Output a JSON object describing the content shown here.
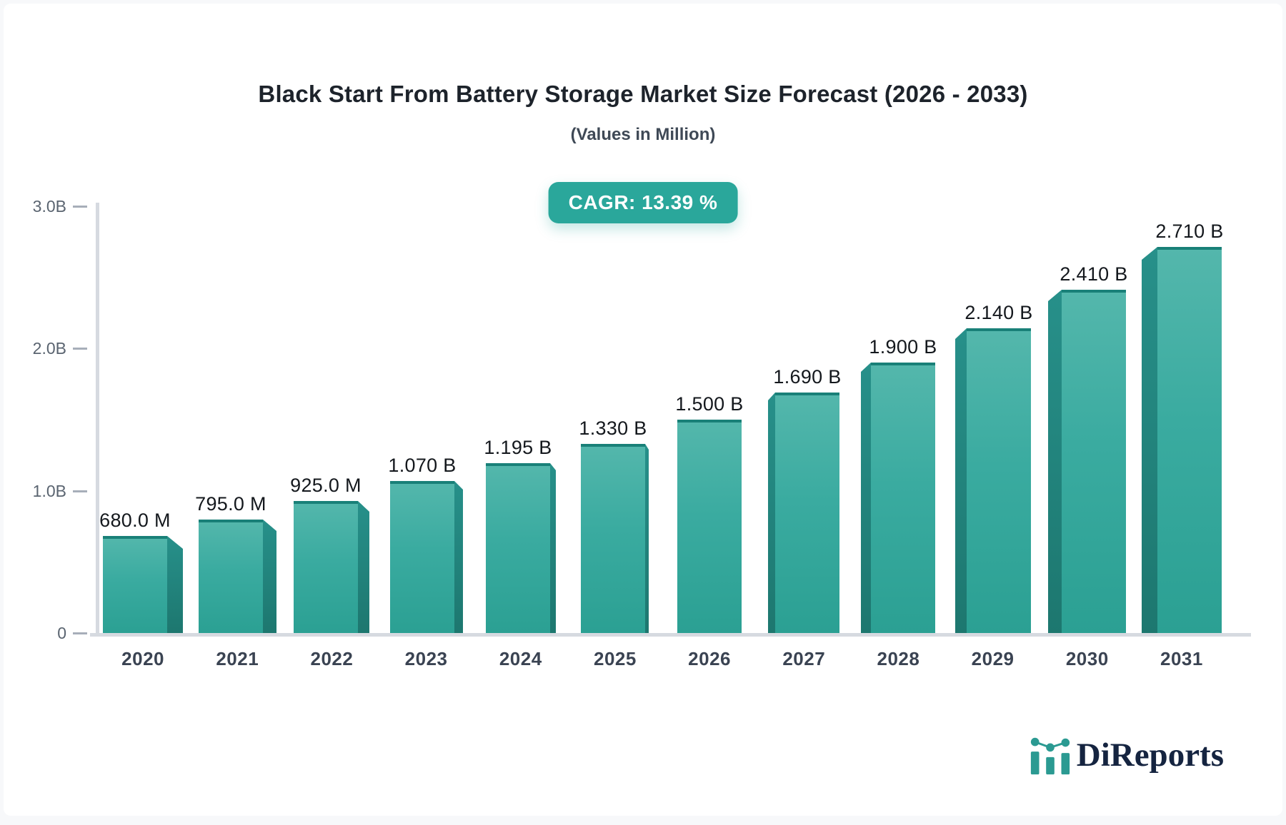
{
  "page": {
    "title": "Black Start From Battery Storage Market Size Forecast (2026 - 2033)",
    "subtitle": "(Values in Million)",
    "cagr_badge": "CAGR: 13.39 %"
  },
  "branding": {
    "logo_text": "DiReports",
    "logo_icon": "bar-chart-trend-icon"
  },
  "colors": {
    "badge_bg": "#2aa79b",
    "bar_front_top": "#54b7ac",
    "bar_front_bottom": "#2ba093",
    "bar_side": "#1f7d75",
    "bar_cap": "#198078",
    "axis_line": "#d6dae0",
    "ytick_text": "#5a6470",
    "xtick_text": "#3a4352",
    "value_text": "#14181d",
    "logo_navy": "#152440",
    "logo_teal": "#2b9a92"
  },
  "chart_data": {
    "type": "bar",
    "title": "Black Start From Battery Storage Market Size Forecast (2026 - 2033)",
    "subtitle": "(Values in Million)",
    "cagr_percent": 13.39,
    "categories": [
      "2020",
      "2021",
      "2022",
      "2023",
      "2024",
      "2025",
      "2026",
      "2027",
      "2028",
      "2029",
      "2030",
      "2031"
    ],
    "values": [
      0.68,
      0.795,
      0.925,
      1.07,
      1.195,
      1.33,
      1.5,
      1.69,
      1.9,
      2.14,
      2.41,
      2.71
    ],
    "value_unit": "billions",
    "value_labels": [
      "680.0 M",
      "795.0 M",
      "925.0 M",
      "1.070 B",
      "1.195 B",
      "1.330 B",
      "1.500 B",
      "1.690 B",
      "1.900 B",
      "2.140 B",
      "2.410 B",
      "2.710 B"
    ],
    "xlabel": "",
    "ylabel": "",
    "ylim": [
      0,
      3
    ],
    "yticks": [
      {
        "label": "3.0B",
        "value": 3
      },
      {
        "label": "2.0B",
        "value": 2
      },
      {
        "label": "1.0B",
        "value": 1
      },
      {
        "label": "0",
        "value": 0
      }
    ],
    "grid": false,
    "legend": "none",
    "style": "3d-perspective-bars"
  }
}
